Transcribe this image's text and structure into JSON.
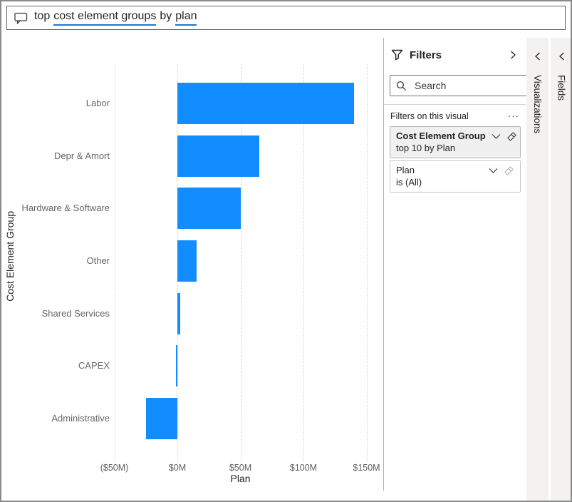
{
  "colors": {
    "bar": "#118DFF",
    "qna_underline": "#1F78D1",
    "pane_background": "#F3F2F1",
    "active_card_background": "#F0F0F0",
    "text_dark": "#252423",
    "text_gray": "#666666"
  },
  "icons": {
    "qna-bubble-icon": "speech-bubble outline",
    "filters-funnel-icon": "funnel outline",
    "search-icon": "magnifier",
    "collapse-right-icon": "chevron-right",
    "collapse-left-icon": "chevron-left",
    "expand-card-icon": "chevron-down",
    "clear-filter-icon": "eraser",
    "more-options-icon": "horizontal-ellipsis"
  },
  "qna_bar": {
    "parts": [
      {
        "text": "top",
        "recognized": false
      },
      {
        "text": "cost element groups",
        "recognized": true
      },
      {
        "text": "by",
        "recognized": false
      },
      {
        "text": "plan",
        "recognized": true
      }
    ]
  },
  "chart_data": {
    "type": "bar",
    "orientation": "horizontal",
    "title": "",
    "categories": [
      "Labor",
      "Depr & Amort",
      "Hardware & Software",
      "Other",
      "Shared Services",
      "CAPEX",
      "Administrative"
    ],
    "values": [
      140,
      65,
      50,
      15,
      2,
      -1,
      -25
    ],
    "unit": "$M",
    "xlabel": "Plan",
    "ylabel": "Cost Element Group",
    "xlim": [
      -50,
      150
    ],
    "xticks": [
      {
        "value": -50,
        "label": "($50M)"
      },
      {
        "value": 0,
        "label": "$0M"
      },
      {
        "value": 50,
        "label": "$50M"
      },
      {
        "value": 100,
        "label": "$100M"
      },
      {
        "value": 150,
        "label": "$150M"
      }
    ],
    "grid": "vertical-dotted",
    "legend": "none",
    "bar_color": "#118DFF"
  },
  "filters_pane": {
    "title": "Filters",
    "search_placeholder": "Search",
    "section_label": "Filters on this visual",
    "more_options_label": "···",
    "cards": [
      {
        "field": "Cost Element Group",
        "condition": "top 10 by Plan"
      },
      {
        "field": "Plan",
        "condition": "is (All)"
      }
    ]
  },
  "collapsed_panes": {
    "visualizations": "Visualizations",
    "fields": "Fields"
  }
}
